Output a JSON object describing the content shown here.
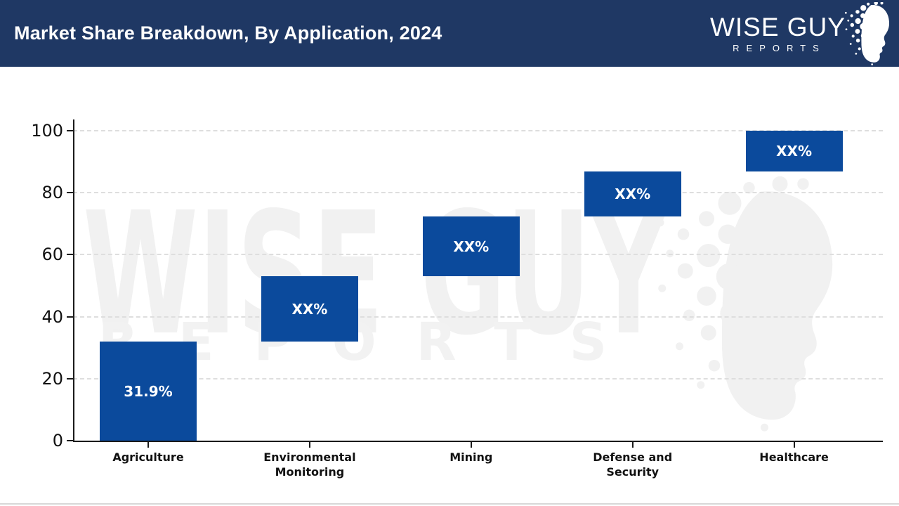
{
  "header": {
    "title": "Market Share Breakdown, By Application, 2024",
    "background": "#1f3864",
    "logo": {
      "line1": "WISE GUY",
      "line2": "REPORTS"
    }
  },
  "watermark": {
    "line1": "WISE GUY",
    "line2": "REPORTS"
  },
  "colors": {
    "bar": "#0b4a9c",
    "header_navy": "#1f3864",
    "gridline": "#dedede",
    "axis": "#1a1a1a",
    "watermark": "#f1f1f1"
  },
  "chart_data": {
    "type": "bar",
    "subtype": "waterfall",
    "title": "Market Share Breakdown, By Application, 2024",
    "categories": [
      "Agriculture",
      "Environmental Monitoring",
      "Mining",
      "Defense and Security",
      "Healthcare"
    ],
    "category_label_lines": [
      [
        "Agriculture"
      ],
      [
        "Environmental",
        "Monitoring"
      ],
      [
        "Mining"
      ],
      [
        "Defense and",
        "Security"
      ],
      [
        "Healthcare"
      ]
    ],
    "segments": [
      {
        "category": "Agriculture",
        "start": 0,
        "end": 31.9,
        "label": "31.9%"
      },
      {
        "category": "Environmental Monitoring",
        "start": 31.9,
        "end": 53.0,
        "label": "XX%"
      },
      {
        "category": "Mining",
        "start": 53.0,
        "end": 72.3,
        "label": "XX%"
      },
      {
        "category": "Defense and Security",
        "start": 72.3,
        "end": 86.9,
        "label": "XX%"
      },
      {
        "category": "Healthcare",
        "start": 86.9,
        "end": 100,
        "label": "XX%"
      }
    ],
    "xlabel": "",
    "ylabel": "",
    "yticks": [
      0,
      20,
      40,
      60,
      80,
      100
    ],
    "ylim": [
      0,
      105
    ],
    "grid": "horizontal-dashed",
    "legend": null,
    "bar_color": "#0b4a9c",
    "value_label_color": "#ffffff"
  }
}
